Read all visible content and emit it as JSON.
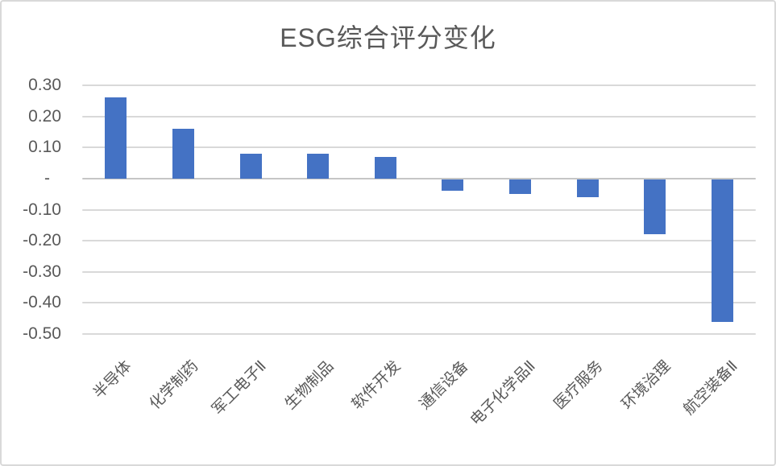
{
  "chart_data": {
    "type": "bar",
    "title": "ESG综合评分变化",
    "categories": [
      "半导体",
      "化学制药",
      "军工电子Ⅱ",
      "生物制品",
      "软件开发",
      "通信设备",
      "电子化学品Ⅱ",
      "医疗服务",
      "环境治理",
      "航空装备Ⅱ"
    ],
    "values": [
      0.26,
      0.16,
      0.08,
      0.08,
      0.07,
      -0.04,
      -0.05,
      -0.06,
      -0.18,
      -0.46
    ],
    "xlabel": "",
    "ylabel": "",
    "ylim": [
      -0.5,
      0.3
    ],
    "ytick_values": [
      0.3,
      0.2,
      0.1,
      0,
      -0.1,
      -0.2,
      -0.3,
      -0.4,
      -0.5
    ],
    "ytick_labels": [
      "0.30",
      "0.20",
      "0.10",
      "-",
      "-0.10",
      "-0.20",
      "-0.30",
      "-0.40",
      "-0.50"
    ],
    "grid": true,
    "legend": false,
    "x_labels_rotation_deg": 45,
    "colors": {
      "bar": "#4472C4",
      "text": "#595959",
      "gridline": "#D9D9D9",
      "zero_axis": "#C6C6C6",
      "frame_border": "#D9D9D9",
      "background": "#FFFFFF"
    }
  }
}
